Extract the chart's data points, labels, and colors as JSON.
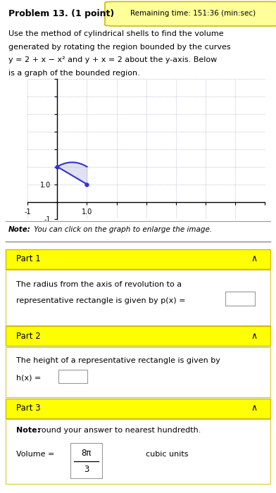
{
  "header_text": "Problem 13. (1 point)",
  "timer_text": "Remaining time: 151:36 (min:sec)",
  "timer_bg": "#ffff99",
  "problem_line1": "Use the method of cylindrical shells to find the volume",
  "problem_line2": "generated by rotating the region bounded by the curves",
  "problem_line3": "y = 2 + x − x² and y + x = 2 about the y-axis. Below",
  "problem_line4": "is a graph of the bounded region.",
  "note_text1": "Note:",
  "note_text2": " You can click on the graph to enlarge the image.",
  "graph_xlim": [
    -1,
    7
  ],
  "graph_ylim": [
    -1,
    7
  ],
  "curve_color": "#3333cc",
  "fill_color": "#aaaadd",
  "fill_alpha": 0.35,
  "part1_header": "Part 1",
  "part1_line1": "The radius from the axis of revolution to a",
  "part1_line2": "representative rectangle is given by p(x) =",
  "part2_header": "Part 2",
  "part2_line1": "The height of a representative rectangle is given by",
  "part2_line2": "h(x) =",
  "part3_header": "Part 3",
  "part3_note_bold": "Note:",
  "part3_note_rest": " round your answer to nearest hundredth.",
  "part3_vol_label": "Volume =",
  "frac_num": "8π",
  "frac_den": "3",
  "part3_suffix": "cubic units",
  "yellow_bg": "#ffff00",
  "yellow_border": "#ccbb00",
  "bg_white": "#ffffff",
  "box_border": "#999999"
}
